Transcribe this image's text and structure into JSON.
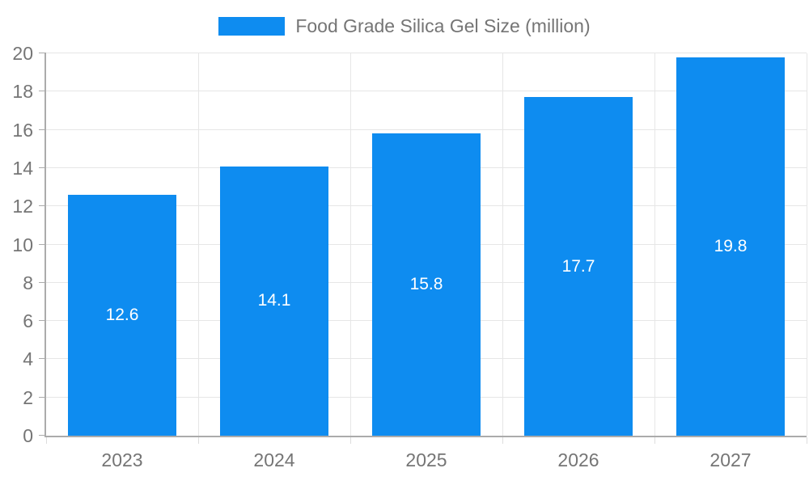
{
  "chart_data": {
    "type": "bar",
    "series_name": "Food Grade Silica Gel Size (million)",
    "categories": [
      "2023",
      "2024",
      "2025",
      "2026",
      "2027"
    ],
    "values": [
      12.6,
      14.1,
      15.8,
      17.7,
      19.8
    ],
    "value_labels": [
      "12.6",
      "14.1",
      "15.8",
      "17.7",
      "19.8"
    ],
    "xlabel": "",
    "ylabel": "",
    "ylim": [
      0,
      20
    ],
    "yticks": [
      0,
      2,
      4,
      6,
      8,
      10,
      12,
      14,
      16,
      18,
      20
    ],
    "grid": true,
    "legend_position": "top-center",
    "value_label_style": "white-centered-inside-bar"
  },
  "colors": {
    "bar": "#0e8cf0",
    "grid": "#e6e6e6",
    "axis": "#ababab",
    "tick_below_axis": "#dddddd",
    "text": "#757575",
    "value_label": "#ffffff",
    "background": "#ffffff"
  }
}
